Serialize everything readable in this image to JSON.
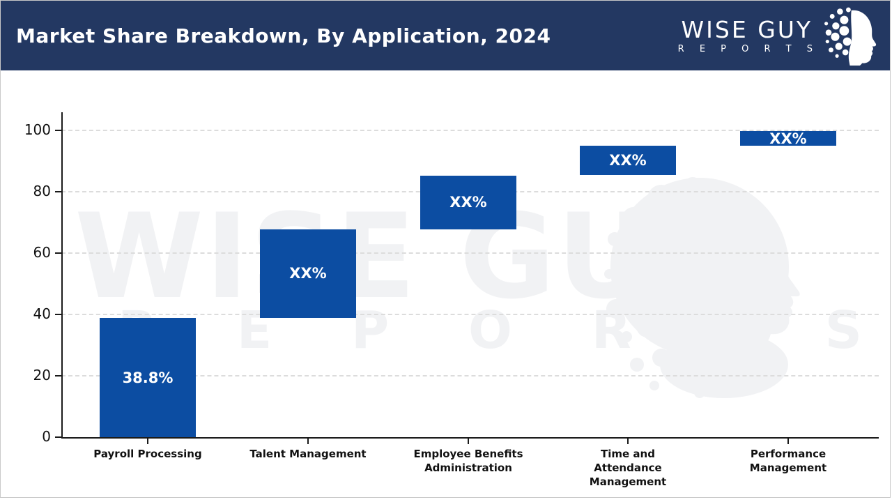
{
  "header": {
    "title": "Market Share Breakdown, By Application, 2024",
    "logo_line1": "WISE GUY",
    "logo_line2": "REPORTS"
  },
  "watermark": {
    "line1": "WISE GUY",
    "line2": "REPORTS"
  },
  "chart_data": {
    "type": "bar",
    "subtype": "waterfall",
    "title": "Market Share Breakdown, By Application, 2024",
    "xlabel": "",
    "ylabel": "",
    "ylim": [
      0,
      106
    ],
    "yticks": [
      0,
      20,
      40,
      60,
      80,
      100
    ],
    "grid": "horizontal-dashed",
    "legend": "none",
    "categories": [
      {
        "label": "Payroll Processing",
        "lines": [
          "Payroll Processing"
        ]
      },
      {
        "label": "Talent Management",
        "lines": [
          "Talent Management"
        ]
      },
      {
        "label": "Employee Benefits Administration",
        "lines": [
          "Employee Benefits",
          "Administration"
        ]
      },
      {
        "label": "Time and Attendance Management",
        "lines": [
          "Time and",
          "Attendance",
          "Management"
        ]
      },
      {
        "label": "Performance Management",
        "lines": [
          "Performance",
          "Management"
        ]
      }
    ],
    "segments": [
      {
        "category": "Payroll Processing",
        "start": 0,
        "end": 38.8,
        "value_label": "38.8%"
      },
      {
        "category": "Talent Management",
        "start": 38.8,
        "end": 67.8,
        "value_label": "XX%"
      },
      {
        "category": "Employee Benefits Administration",
        "start": 67.8,
        "end": 85.2,
        "value_label": "XX%"
      },
      {
        "category": "Time and Attendance Management",
        "start": 85.4,
        "end": 94.9,
        "value_label": "XX%"
      },
      {
        "category": "Performance Management",
        "start": 94.9,
        "end": 99.7,
        "value_label": "XX%"
      }
    ]
  },
  "colors": {
    "header_bg": "#233862",
    "bar_fill": "#0C4DA2",
    "bar_label": "#FFFFFF",
    "axis": "#1A1A1A",
    "gridline": "#DCDCDC",
    "watermark": "#F1F2F4",
    "page_bg": "#FFFFFF",
    "card_border": "#C9C9C9"
  }
}
